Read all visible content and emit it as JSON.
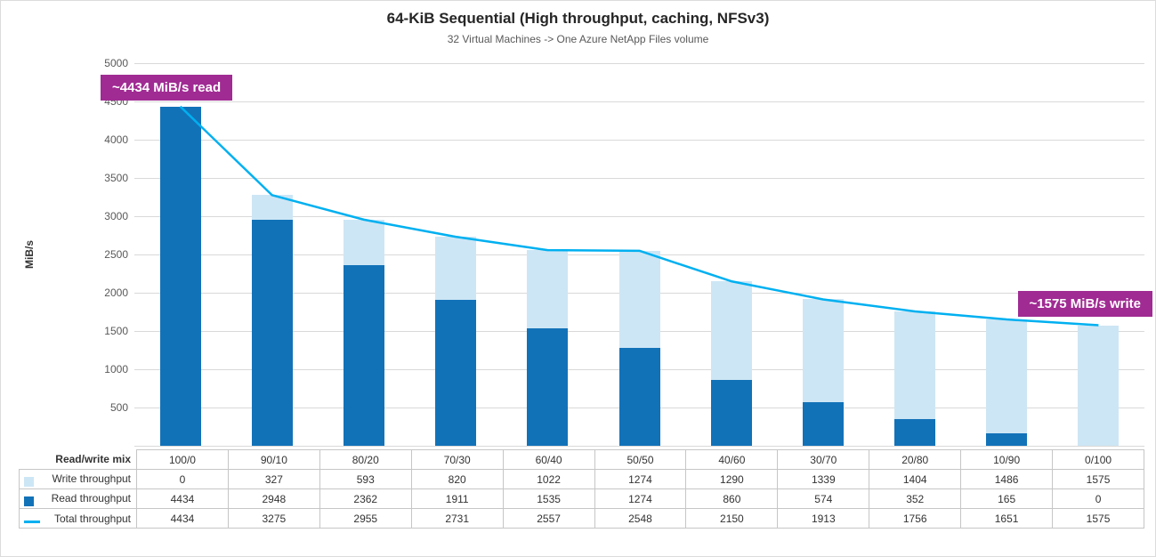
{
  "title": "64-KiB Sequential (High throughput, caching, NFSv3)",
  "subtitle": "32 Virtual Machines -> One Azure NetApp Files volume",
  "ylabel": "MiB/s",
  "annotations": {
    "read": "~4434 MiB/s read",
    "write": "~1575 MiB/s write"
  },
  "colors": {
    "read": "#1272b8",
    "write": "#cde6f5",
    "total_line": "#00b0f0",
    "annotation_bg": "#a02b93",
    "gridline": "#d9d9d9",
    "table_border": "#c6c6c6"
  },
  "chart_data": {
    "type": "bar",
    "stacked": true,
    "title": "64-KiB Sequential (High throughput, caching, NFSv3)",
    "subtitle": "32 Virtual Machines -> One Azure NetApp Files volume",
    "ylabel": "MiB/s",
    "ylim": [
      0,
      5000
    ],
    "ytick_step": 500,
    "grid": true,
    "legend_position": "data-table-left",
    "category_axis_label": "Read/write mix",
    "categories": [
      "100/0",
      "90/10",
      "80/20",
      "70/30",
      "60/40",
      "50/50",
      "40/60",
      "30/70",
      "20/80",
      "10/90",
      "0/100"
    ],
    "series": [
      {
        "name": "Write throughput",
        "type": "bar",
        "values": [
          0,
          327,
          593,
          820,
          1022,
          1274,
          1290,
          1339,
          1404,
          1486,
          1575
        ]
      },
      {
        "name": "Read throughput",
        "type": "bar",
        "values": [
          4434,
          2948,
          2362,
          1911,
          1535,
          1274,
          860,
          574,
          352,
          165,
          0
        ]
      },
      {
        "name": "Total throughput",
        "type": "line",
        "values": [
          4434,
          3275,
          2955,
          2731,
          2557,
          2548,
          2150,
          1913,
          1756,
          1651,
          1575
        ]
      }
    ]
  }
}
